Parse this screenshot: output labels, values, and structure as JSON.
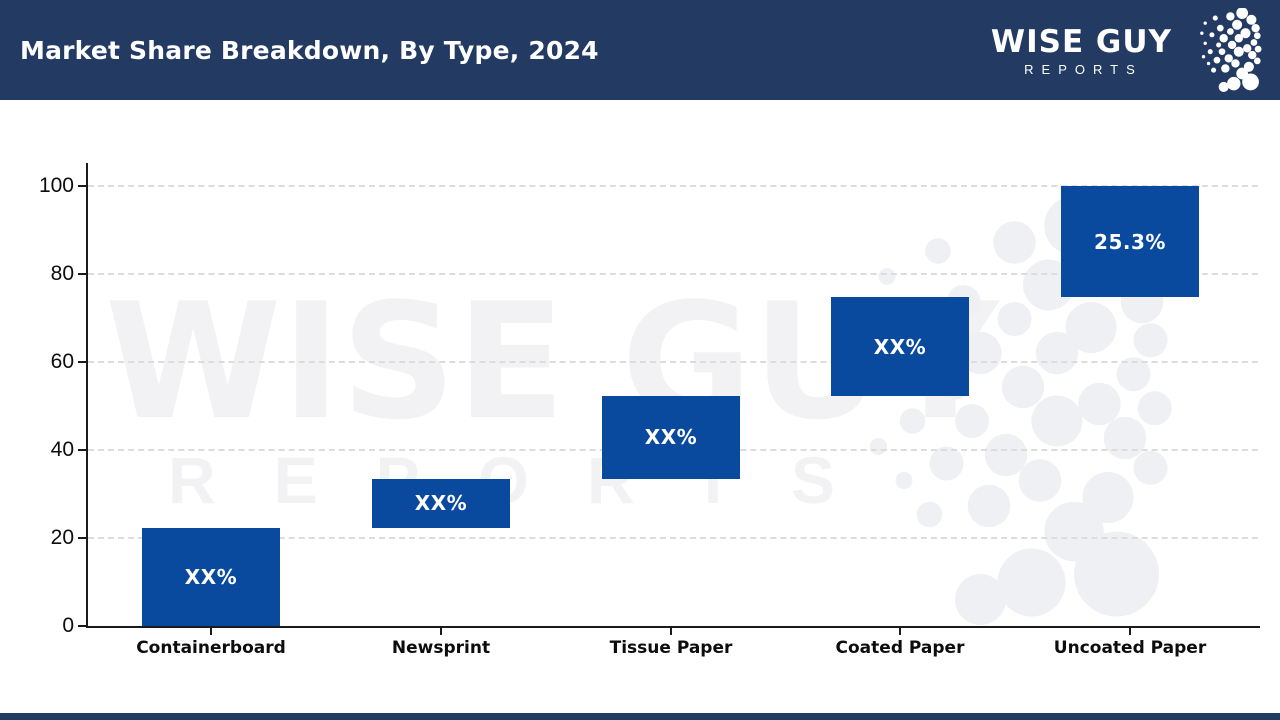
{
  "header": {
    "title": "Market Share Breakdown, By Type, 2024",
    "logo_line1": "WISE GUY",
    "logo_line2": "REPORTS"
  },
  "watermark": {
    "line1": "WISE GUY",
    "line2": "REPORTS"
  },
  "colors": {
    "header_bg": "#233a63",
    "bar": "#0a4a9e",
    "gridline": "#dcdcdc",
    "watermark": "#f2f2f4"
  },
  "chart_data": {
    "type": "bar",
    "subtype": "waterfall",
    "title": "Market Share Breakdown, By Type, 2024",
    "categories": [
      "Containerboard",
      "Newsprint",
      "Tissue Paper",
      "Coated Paper",
      "Uncoated Paper"
    ],
    "segments": [
      {
        "label": "XX%",
        "start": 0,
        "end": 22.3
      },
      {
        "label": "XX%",
        "start": 22.3,
        "end": 33.5
      },
      {
        "label": "XX%",
        "start": 33.5,
        "end": 52.3
      },
      {
        "label": "XX%",
        "start": 52.3,
        "end": 74.7
      },
      {
        "label": "25.3%",
        "start": 74.7,
        "end": 100
      }
    ],
    "xlabel": "",
    "ylabel": "",
    "ylim": [
      0,
      100
    ],
    "yticks": [
      0,
      20,
      40,
      60,
      80,
      100
    ],
    "bar_color": "#0a4a9e",
    "grid": "horizontal-dashed",
    "legend": "none"
  }
}
